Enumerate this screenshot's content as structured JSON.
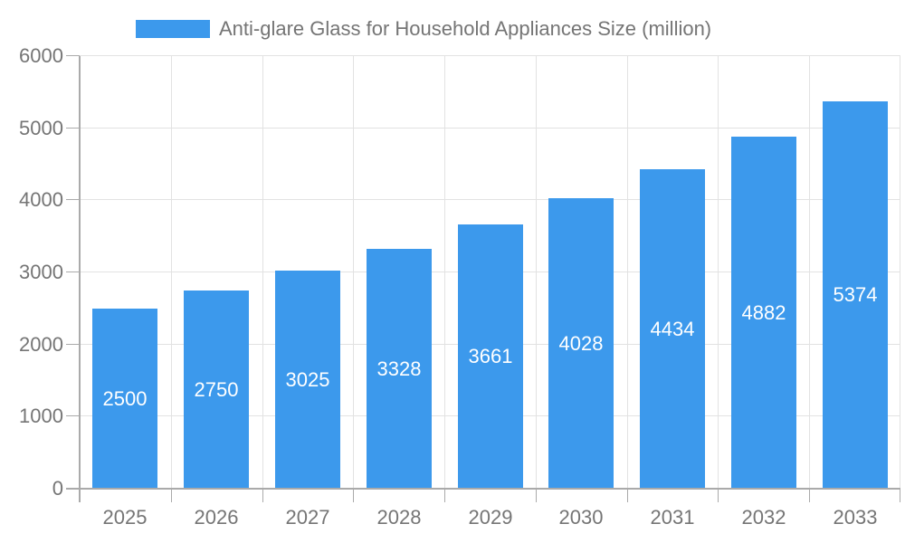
{
  "legend": {
    "label": "Anti-glare Glass for Household Appliances Size (million)"
  },
  "chart_data": {
    "type": "bar",
    "title": "Anti-glare Glass for Household Appliances Size (million)",
    "series_name": "Anti-glare Glass for Household Appliances Size (million)",
    "categories": [
      "2025",
      "2026",
      "2027",
      "2028",
      "2029",
      "2030",
      "2031",
      "2032",
      "2033"
    ],
    "values": [
      2500,
      2750,
      3025,
      3328,
      3661,
      4028,
      4434,
      4882,
      5374
    ],
    "bar_value_labels": [
      "2500",
      "2750",
      "3025",
      "3328",
      "3661",
      "4028",
      "4434",
      "4882",
      "5374"
    ],
    "xlabel": "",
    "ylabel": "",
    "ylim": [
      0,
      6000
    ],
    "yticks": [
      0,
      1000,
      2000,
      3000,
      4000,
      5000,
      6000
    ],
    "ytick_labels": [
      "0",
      "1000",
      "2000",
      "3000",
      "4000",
      "5000",
      "6000"
    ],
    "grid": true,
    "legend_position": "top",
    "bar_labels_visible": true,
    "colors": {
      "bar": "#3C99EC",
      "bar_label": "#FFFFFF",
      "axis": "#AAAAAA",
      "grid": "#E2E2E2",
      "text": "#757575",
      "background": "#FFFFFF"
    }
  }
}
